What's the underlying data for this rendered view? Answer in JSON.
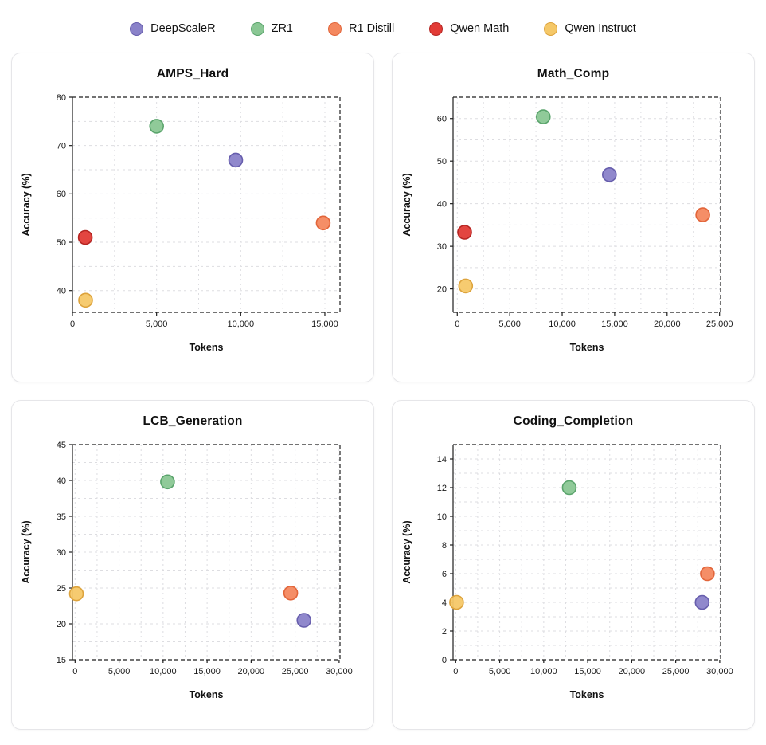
{
  "legend": {
    "position": "top center",
    "items": [
      {
        "label": "DeepScaleR",
        "color": "#8a82c9",
        "edge": "#675ead"
      },
      {
        "label": "ZR1",
        "color": "#8ac794",
        "edge": "#5aa46c"
      },
      {
        "label": "R1 Distill",
        "color": "#f4885f",
        "edge": "#e2653a"
      },
      {
        "label": "Qwen Math",
        "color": "#e23b36",
        "edge": "#b52522"
      },
      {
        "label": "Qwen Instruct",
        "color": "#f5c868",
        "edge": "#dda33c"
      }
    ]
  },
  "chart_data": [
    {
      "type": "scatter",
      "title": "AMPS_Hard",
      "xlabel": "Tokens",
      "ylabel": "Accuracy (%)",
      "xlim": [
        0,
        15900
      ],
      "ylim": [
        35.5,
        80
      ],
      "xticks": [
        0,
        5000,
        10000,
        15000
      ],
      "yticks": [
        40,
        50,
        60,
        70,
        80
      ],
      "grid": true,
      "points": [
        {
          "series": "DeepScaleR",
          "x": 9700,
          "y": 67
        },
        {
          "series": "ZR1",
          "x": 5000,
          "y": 74
        },
        {
          "series": "R1 Distill",
          "x": 14900,
          "y": 54
        },
        {
          "series": "Qwen Math",
          "x": 760,
          "y": 51
        },
        {
          "series": "Qwen Instruct",
          "x": 780,
          "y": 38
        }
      ]
    },
    {
      "type": "scatter",
      "title": "Math_Comp",
      "xlabel": "Tokens",
      "ylabel": "Accuracy (%)",
      "xlim": [
        -400,
        25100
      ],
      "ylim": [
        14.5,
        65
      ],
      "xticks": [
        0,
        5000,
        10000,
        15000,
        20000,
        25000
      ],
      "yticks": [
        20,
        30,
        40,
        50,
        60
      ],
      "grid": true,
      "points": [
        {
          "series": "DeepScaleR",
          "x": 14500,
          "y": 46.8
        },
        {
          "series": "ZR1",
          "x": 8200,
          "y": 60.4
        },
        {
          "series": "R1 Distill",
          "x": 23400,
          "y": 37.4
        },
        {
          "series": "Qwen Math",
          "x": 700,
          "y": 33.3
        },
        {
          "series": "Qwen Instruct",
          "x": 800,
          "y": 20.7
        }
      ]
    },
    {
      "type": "scatter",
      "title": "LCB_Generation",
      "xlabel": "Tokens",
      "ylabel": "Accuracy (%)",
      "xlim": [
        -300,
        30100
      ],
      "ylim": [
        15,
        45
      ],
      "xticks": [
        0,
        5000,
        10000,
        15000,
        20000,
        25000,
        30000
      ],
      "yticks": [
        15,
        20,
        25,
        30,
        35,
        40,
        45
      ],
      "grid": true,
      "points": [
        {
          "series": "DeepScaleR",
          "x": 26000,
          "y": 20.5
        },
        {
          "series": "ZR1",
          "x": 10500,
          "y": 39.8
        },
        {
          "series": "R1 Distill",
          "x": 24500,
          "y": 24.3
        },
        {
          "series": "Qwen Instruct",
          "x": 150,
          "y": 24.2
        }
      ]
    },
    {
      "type": "scatter",
      "title": "Coding_Completion",
      "xlabel": "Tokens",
      "ylabel": "Accuracy (%)",
      "xlim": [
        -300,
        30100
      ],
      "ylim": [
        0,
        15
      ],
      "xticks": [
        0,
        5000,
        10000,
        15000,
        20000,
        25000,
        30000
      ],
      "yticks": [
        0,
        2,
        4,
        6,
        8,
        10,
        12,
        14
      ],
      "grid": true,
      "points": [
        {
          "series": "DeepScaleR",
          "x": 28000,
          "y": 4
        },
        {
          "series": "ZR1",
          "x": 12900,
          "y": 12
        },
        {
          "series": "R1 Distill",
          "x": 28600,
          "y": 6
        },
        {
          "series": "Qwen Instruct",
          "x": 100,
          "y": 4
        }
      ]
    }
  ]
}
